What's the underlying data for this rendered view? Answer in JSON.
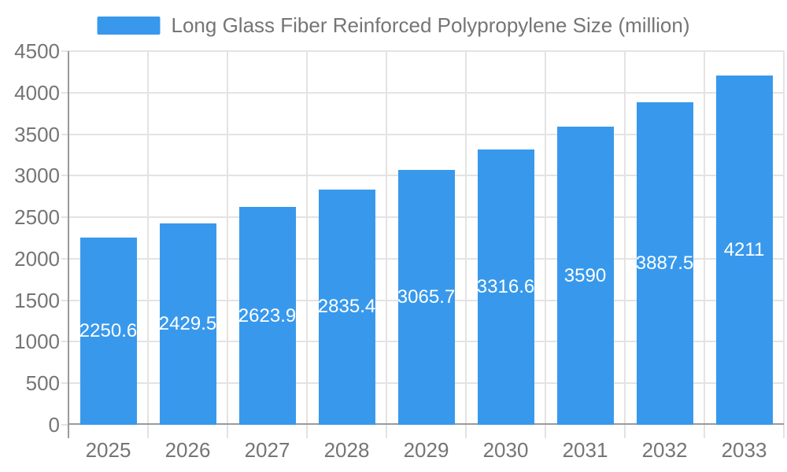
{
  "chart_data": {
    "type": "bar",
    "title": "",
    "legend": {
      "position": "top-center",
      "label": "Long Glass Fiber Reinforced Polypropylene Size (million)"
    },
    "categories": [
      "2025",
      "2026",
      "2027",
      "2028",
      "2029",
      "2030",
      "2031",
      "2032",
      "2033"
    ],
    "series": [
      {
        "name": "Long Glass Fiber Reinforced Polypropylene Size (million)",
        "values": [
          2250.6,
          2429.5,
          2623.9,
          2835.4,
          3065.7,
          3316.6,
          3590,
          3887.5,
          4211
        ]
      }
    ],
    "xlabel": "",
    "ylabel": "",
    "ylim": [
      0,
      4500
    ],
    "ytick_step": 500,
    "grid": true,
    "bar_value_labels_visible": true,
    "colors": {
      "bar": "#3899EC",
      "axis_line": "#9A9A9A",
      "grid_line": "#E3E3E3",
      "axis_text": "#757575",
      "legend_text": "#757575",
      "bar_label_text": "#FFFFFF"
    }
  }
}
